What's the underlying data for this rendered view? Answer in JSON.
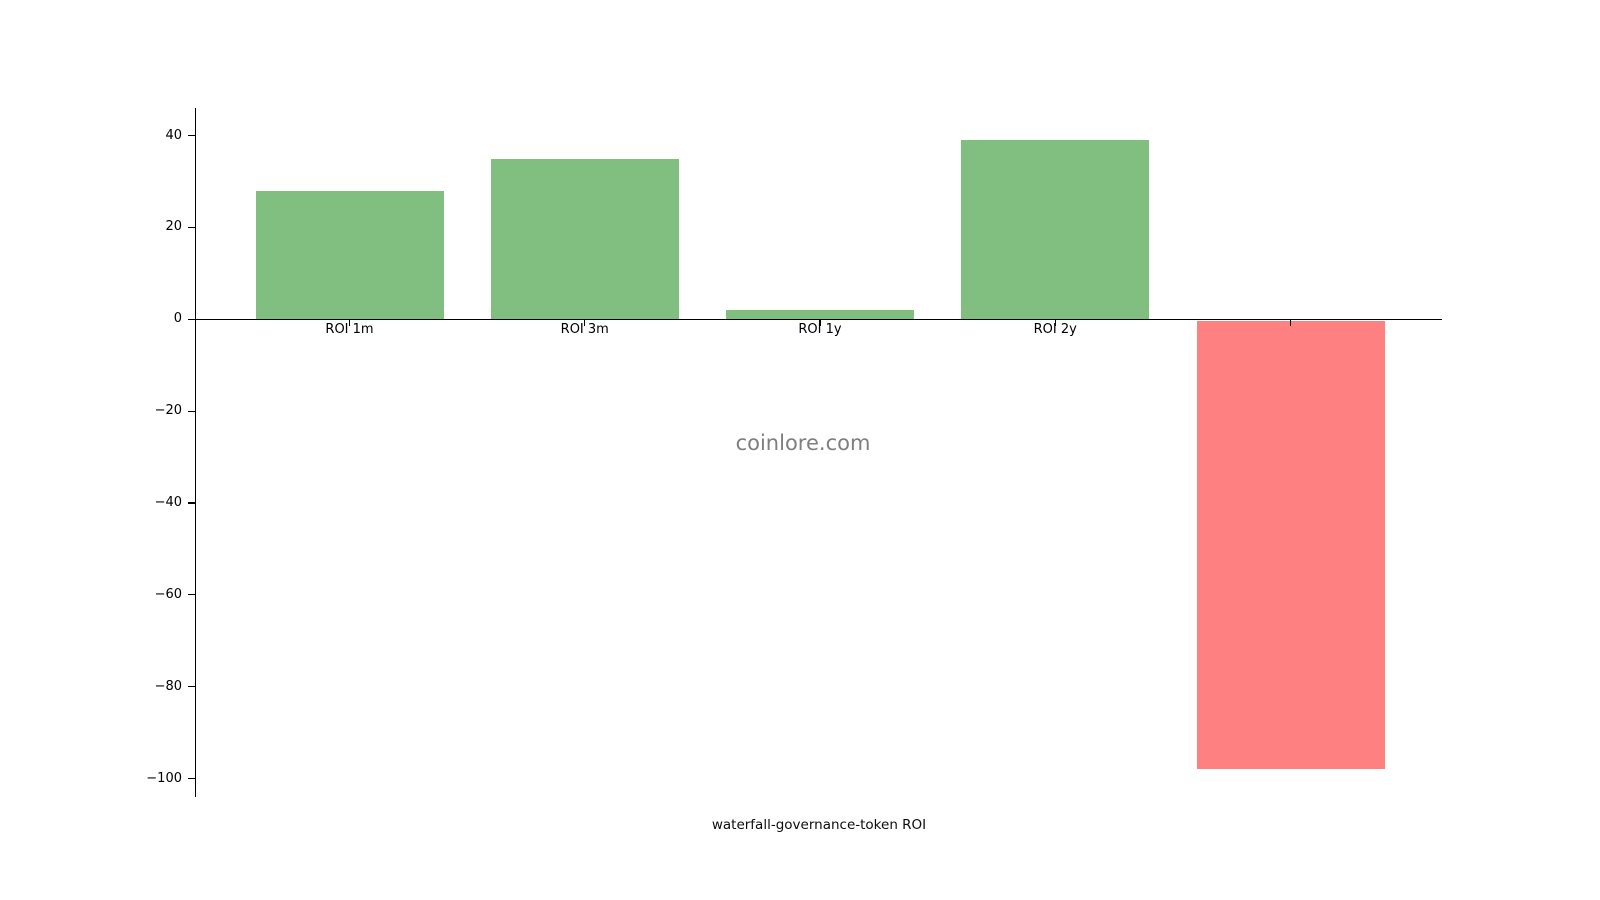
{
  "chart_data": {
    "type": "bar",
    "title": "waterfall-governance-token ROI",
    "xlabel": "waterfall-governance-token ROI",
    "ylabel": "",
    "categories": [
      "ROI 1m",
      "ROI 3m",
      "ROI 1y",
      "ROI 2y",
      ""
    ],
    "values": [
      28,
      35,
      2,
      39,
      -98
    ],
    "bar_colors": [
      "#80bf80",
      "#80bf80",
      "#80bf80",
      "#80bf80",
      "#ff8080"
    ],
    "positive_color": "#80bf80",
    "negative_color": "#ff8080",
    "axis_color": "#000000",
    "ylim": [
      -104,
      46
    ],
    "yticks": [
      40,
      20,
      0,
      -20,
      -40,
      -60,
      -80,
      -100
    ],
    "ytick_labels": [
      "40",
      "20",
      "0",
      "−20",
      "−40",
      "−60",
      "−80",
      "−100"
    ],
    "grid": false,
    "legend": "none",
    "watermark": {
      "text": "coinlore.com",
      "color": "#7f7f7f"
    }
  }
}
